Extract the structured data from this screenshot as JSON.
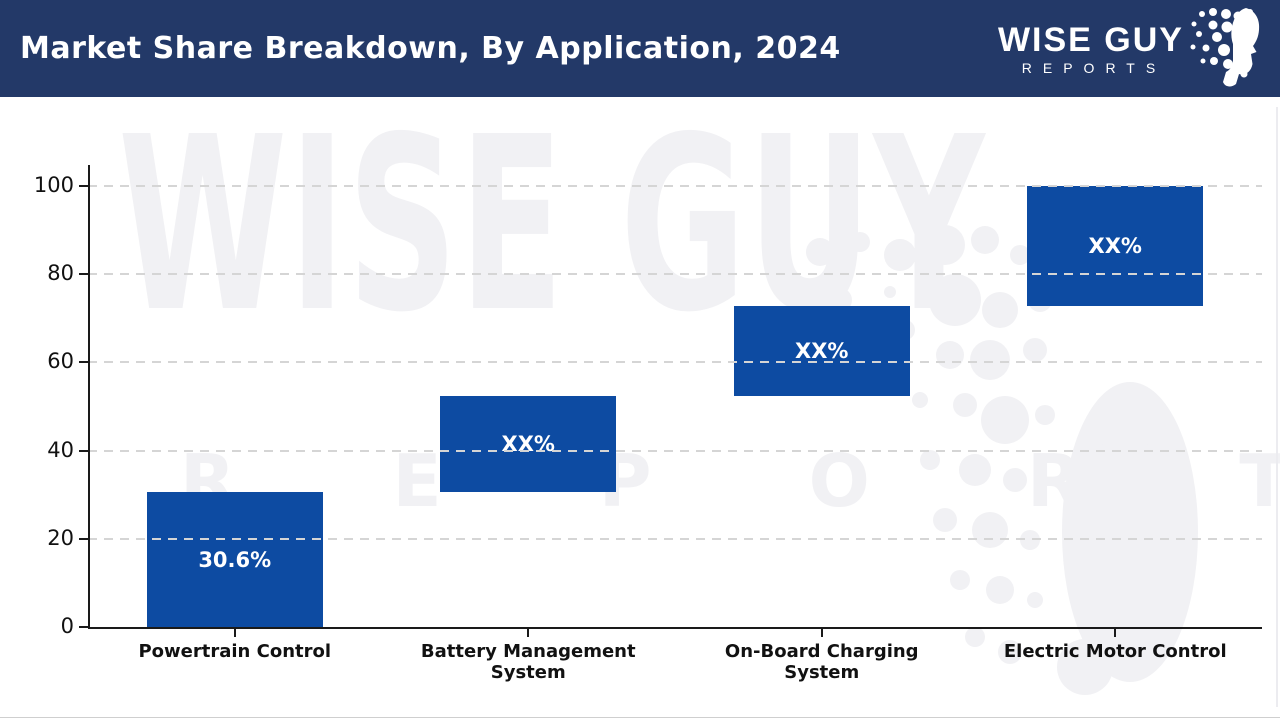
{
  "header": {
    "title": "Market Share Breakdown, By Application, 2024",
    "logo": {
      "line1": "WISE GUY",
      "line2": "REPORTS"
    }
  },
  "watermark": {
    "line1": "WISE GUY",
    "line2": "REPORTS"
  },
  "colors": {
    "header_bg": "#233968",
    "bar": "#0d4ba2",
    "gridline": "#d5d5d5",
    "axis": "#1a1a1a",
    "watermark": "#f1f1f4",
    "bar_label": "#ffffff"
  },
  "chart_data": {
    "type": "bar",
    "subtype": "waterfall-percentage",
    "title": "Market Share Breakdown, By Application, 2024",
    "categories": [
      "Powertrain Control",
      "Battery Management System",
      "On-Board Charging System",
      "Electric Motor Control"
    ],
    "series": [
      {
        "name": "Market Share",
        "segments": [
          {
            "category": "Powertrain Control",
            "start": 0,
            "end": 30.6,
            "label": "30.6%"
          },
          {
            "category": "Battery Management System",
            "start": 30.6,
            "end": 52.4,
            "label": "XX%"
          },
          {
            "category": "On-Board Charging System",
            "start": 52.4,
            "end": 72.9,
            "label": "XX%"
          },
          {
            "category": "Electric Motor Control",
            "start": 72.9,
            "end": 100,
            "label": "XX%"
          }
        ]
      }
    ],
    "ylim": [
      0,
      100
    ],
    "yticks": [
      0,
      20,
      40,
      60,
      80,
      100
    ],
    "grid": "horizontal-dashed",
    "grid_above_bars": true,
    "legend": "none",
    "xlabel": "",
    "ylabel": ""
  }
}
